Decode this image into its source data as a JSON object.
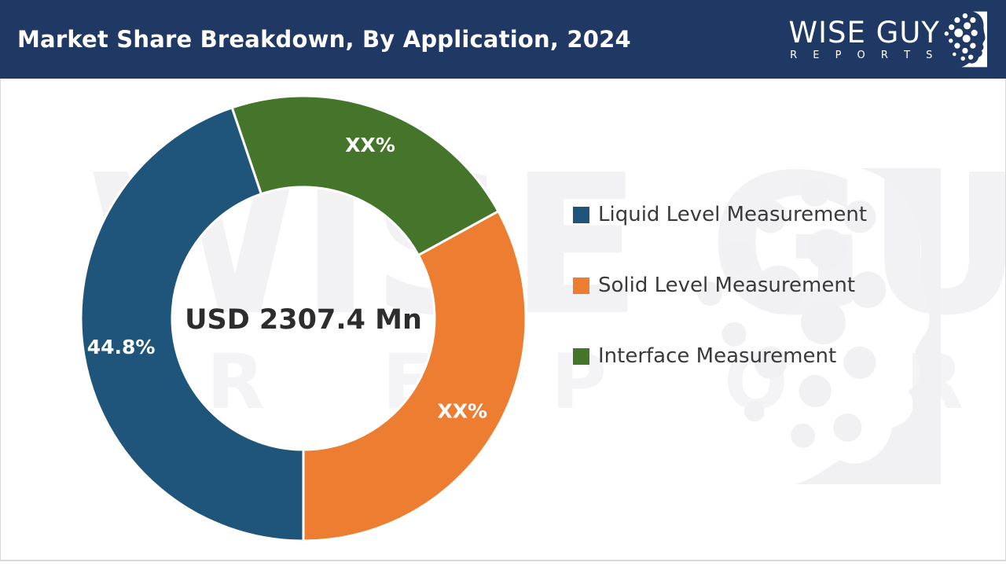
{
  "header": {
    "title": "Market Share Breakdown, By Application, 2024",
    "logo": {
      "line1": "WISE GUY",
      "line2": "R E P O R T S"
    }
  },
  "watermark": {
    "line1": "WISE GUY",
    "line2": "R E P O R T S"
  },
  "chart_data": {
    "type": "pie",
    "donut": true,
    "title": "Market Share Breakdown, By Application, 2024",
    "center_label": "USD 2307.4 Mn",
    "start_angle_deg": 270,
    "direction": "counterclockwise",
    "draw_order": [
      1,
      2,
      0
    ],
    "legend_position": "right",
    "slices": [
      {
        "name": "Liquid Level Measurement",
        "label": "44.8%",
        "value_pct": 44.8,
        "color": "#1F557A"
      },
      {
        "name": "Solid Level Measurement",
        "label": "XX%",
        "value_pct": 33.0,
        "color": "#EC7D31"
      },
      {
        "name": "Interface Measurement",
        "label": "XX%",
        "value_pct": 22.2,
        "color": "#45752B"
      }
    ]
  },
  "colors": {
    "header_bg": "#1F3864",
    "border": "#D9D9D9",
    "center_text": "#2D2D2D",
    "legend_text": "#3A3A3A",
    "watermark": "#F2F2F4",
    "slice_gap_stroke": "#FFFFFF"
  }
}
